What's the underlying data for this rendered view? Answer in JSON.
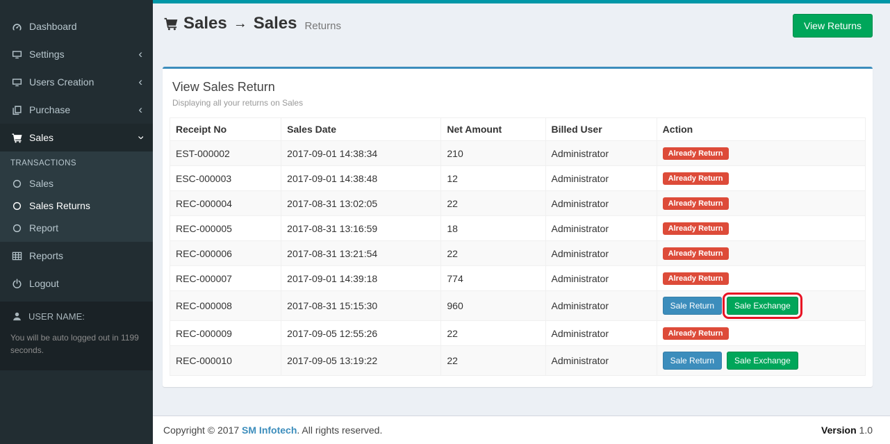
{
  "colors": {
    "top_strip_teal": "#0097a7",
    "primary_blue": "#3c8dbc",
    "success_green": "#00a65a",
    "danger_red": "#dd4b39",
    "sidebar_bg": "#222d32",
    "annotation_red": "#e81123"
  },
  "sidebar": {
    "items": [
      {
        "label": "Dashboard"
      },
      {
        "label": "Settings"
      },
      {
        "label": "Users Creation"
      },
      {
        "label": "Purchase"
      },
      {
        "label": "Sales"
      }
    ],
    "section_label": "TRANSACTIONS",
    "sub_items": [
      {
        "label": "Sales"
      },
      {
        "label": "Sales Returns"
      },
      {
        "label": "Report"
      }
    ],
    "reports_label": "Reports",
    "logout_label": "Logout",
    "user_label": "USER NAME:",
    "auto_logout_notice": "You will be auto logged out in 1199 seconds."
  },
  "header": {
    "title_main": "Sales",
    "title_arrow": "→",
    "title_second": "Sales",
    "title_sub": "Returns",
    "view_returns_button": "View Returns"
  },
  "box": {
    "title": "View Sales Return",
    "subtitle": "Displaying all your returns on Sales",
    "table": {
      "columns": [
        "Receipt No",
        "Sales Date",
        "Net Amount",
        "Billed User",
        "Action"
      ],
      "rows": [
        {
          "receipt_no": "EST-000002",
          "sales_date": "2017-09-01 14:38:34",
          "net_amount": "210",
          "billed_user": "Administrator",
          "actions": [
            {
              "label": "Already Return",
              "style": "danger",
              "kind": "badge"
            }
          ]
        },
        {
          "receipt_no": "ESC-000003",
          "sales_date": "2017-09-01 14:38:48",
          "net_amount": "12",
          "billed_user": "Administrator",
          "actions": [
            {
              "label": "Already Return",
              "style": "danger",
              "kind": "badge"
            }
          ]
        },
        {
          "receipt_no": "REC-000004",
          "sales_date": "2017-08-31 13:02:05",
          "net_amount": "22",
          "billed_user": "Administrator",
          "actions": [
            {
              "label": "Already Return",
              "style": "danger",
              "kind": "badge"
            }
          ]
        },
        {
          "receipt_no": "REC-000005",
          "sales_date": "2017-08-31 13:16:59",
          "net_amount": "18",
          "billed_user": "Administrator",
          "actions": [
            {
              "label": "Already Return",
              "style": "danger",
              "kind": "badge"
            }
          ]
        },
        {
          "receipt_no": "REC-000006",
          "sales_date": "2017-08-31 13:21:54",
          "net_amount": "22",
          "billed_user": "Administrator",
          "actions": [
            {
              "label": "Already Return",
              "style": "danger",
              "kind": "badge"
            }
          ]
        },
        {
          "receipt_no": "REC-000007",
          "sales_date": "2017-09-01 14:39:18",
          "net_amount": "774",
          "billed_user": "Administrator",
          "actions": [
            {
              "label": "Already Return",
              "style": "danger",
              "kind": "badge"
            }
          ]
        },
        {
          "receipt_no": "REC-000008",
          "sales_date": "2017-08-31 15:15:30",
          "net_amount": "960",
          "billed_user": "Administrator",
          "actions": [
            {
              "label": "Sale Return",
              "style": "primary",
              "kind": "button"
            },
            {
              "label": "Sale Exchange",
              "style": "success",
              "kind": "button",
              "highlighted": true
            }
          ]
        },
        {
          "receipt_no": "REC-000009",
          "sales_date": "2017-09-05 12:55:26",
          "net_amount": "22",
          "billed_user": "Administrator",
          "actions": [
            {
              "label": "Already Return",
              "style": "danger",
              "kind": "badge"
            }
          ]
        },
        {
          "receipt_no": "REC-000010",
          "sales_date": "2017-09-05 13:19:22",
          "net_amount": "22",
          "billed_user": "Administrator",
          "actions": [
            {
              "label": "Sale Return",
              "style": "primary",
              "kind": "button"
            },
            {
              "label": "Sale Exchange",
              "style": "success",
              "kind": "button"
            }
          ]
        }
      ]
    }
  },
  "footer": {
    "copyright_prefix": "Copyright © 2017",
    "company": "SM Infotech",
    "copyright_suffix": ". All rights reserved.",
    "version_label": "Version",
    "version_value": "1.0"
  }
}
